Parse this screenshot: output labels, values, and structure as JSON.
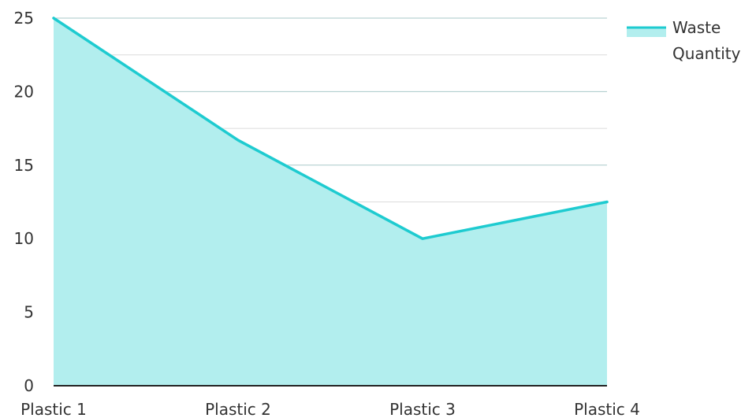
{
  "chart_data": {
    "type": "area",
    "categories": [
      "Plastic 1",
      "Plastic 2",
      "Plastic 3",
      "Plastic 4"
    ],
    "series": [
      {
        "name": "Waste Quantity",
        "values": [
          25,
          16.7,
          10,
          12.5
        ]
      }
    ],
    "ylim": [
      0,
      25
    ],
    "y_ticks": [
      0,
      5,
      10,
      15,
      20,
      25
    ],
    "grid": true,
    "minor_grid": true,
    "legend": {
      "position": "top-right",
      "lines": [
        "Waste",
        "Quantity"
      ]
    },
    "colors": {
      "line": "#1ecbd0",
      "fill": "#b2eeee",
      "grid_major": "#a9c9c9",
      "grid_minor": "#dcdcdc",
      "axis": "#222222",
      "text": "#333333"
    }
  }
}
